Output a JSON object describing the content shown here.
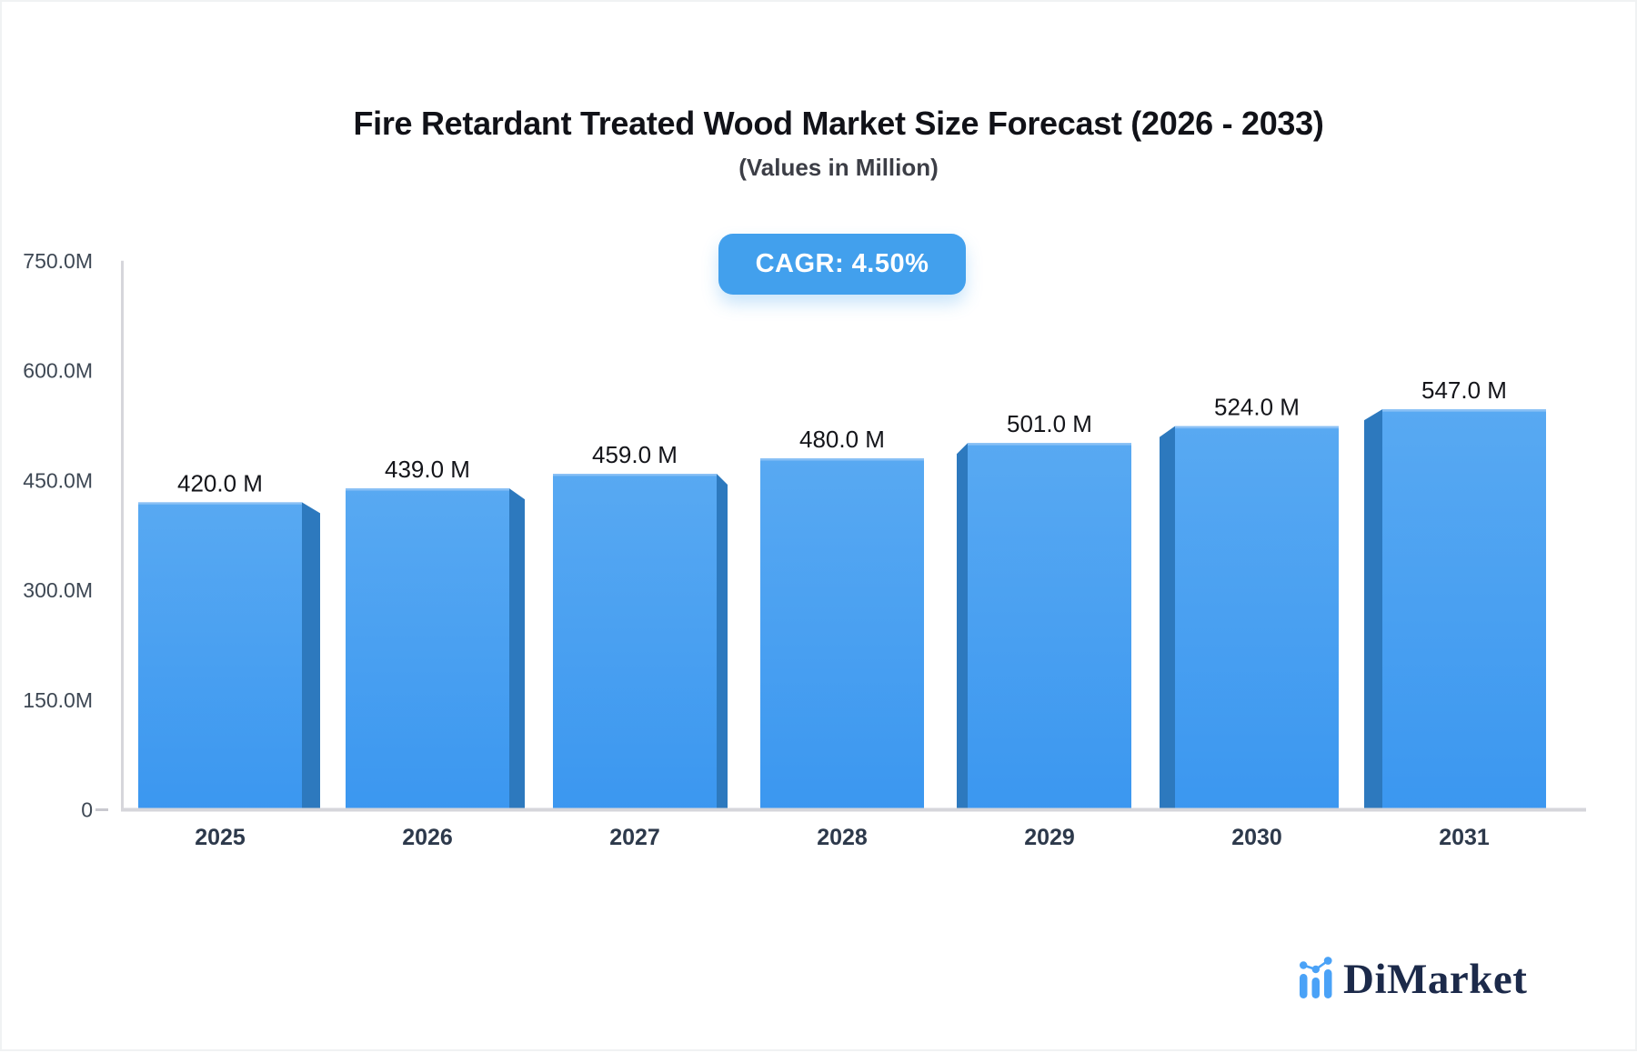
{
  "header": {
    "title": "Fire Retardant Treated Wood Market Size Forecast (2026 - 2033)",
    "subtitle": "(Values in Million)",
    "cagr_badge": "CAGR: 4.50%"
  },
  "chart_data": {
    "type": "bar",
    "title": "Fire Retardant Treated Wood Market Size Forecast (2026 - 2033)",
    "subtitle": "(Values in Million)",
    "cagr": "4.50%",
    "categories": [
      "2025",
      "2026",
      "2027",
      "2028",
      "2029",
      "2030",
      "2031"
    ],
    "values": [
      420,
      439,
      459,
      480,
      501,
      524,
      547
    ],
    "value_labels": [
      "420.0 M",
      "439.0 M",
      "459.0 M",
      "480.0 M",
      "501.0 M",
      "524.0 M",
      "547.0 M"
    ],
    "y_axis": {
      "range": [
        0,
        750
      ],
      "ticks": [
        {
          "value": 750,
          "label": "750.0M"
        },
        {
          "value": 600,
          "label": "600.0M"
        },
        {
          "value": 450,
          "label": "450.0M"
        },
        {
          "value": 300,
          "label": "300.0M"
        },
        {
          "value": 150,
          "label": "150.0M"
        },
        {
          "value": 0,
          "label": "0"
        }
      ]
    },
    "xlabel": "",
    "ylabel": "",
    "grid": false,
    "legend": null
  },
  "branding": {
    "name": "DiMarket"
  },
  "colors": {
    "bar_face_top": "#58a9f2",
    "bar_face_bottom": "#3b97f0",
    "bar_side": "#2d79be",
    "bar_top_highlight": "#8fc3f6",
    "badge_bg": "#42a0ed",
    "axis_line": "#d6d6db",
    "y_tick_text": "#3e4854",
    "x_tick_text": "#2d394b",
    "value_text": "#14151a",
    "logo_blue": "#4aa2f7",
    "logo_navy": "#1c2a4a"
  }
}
